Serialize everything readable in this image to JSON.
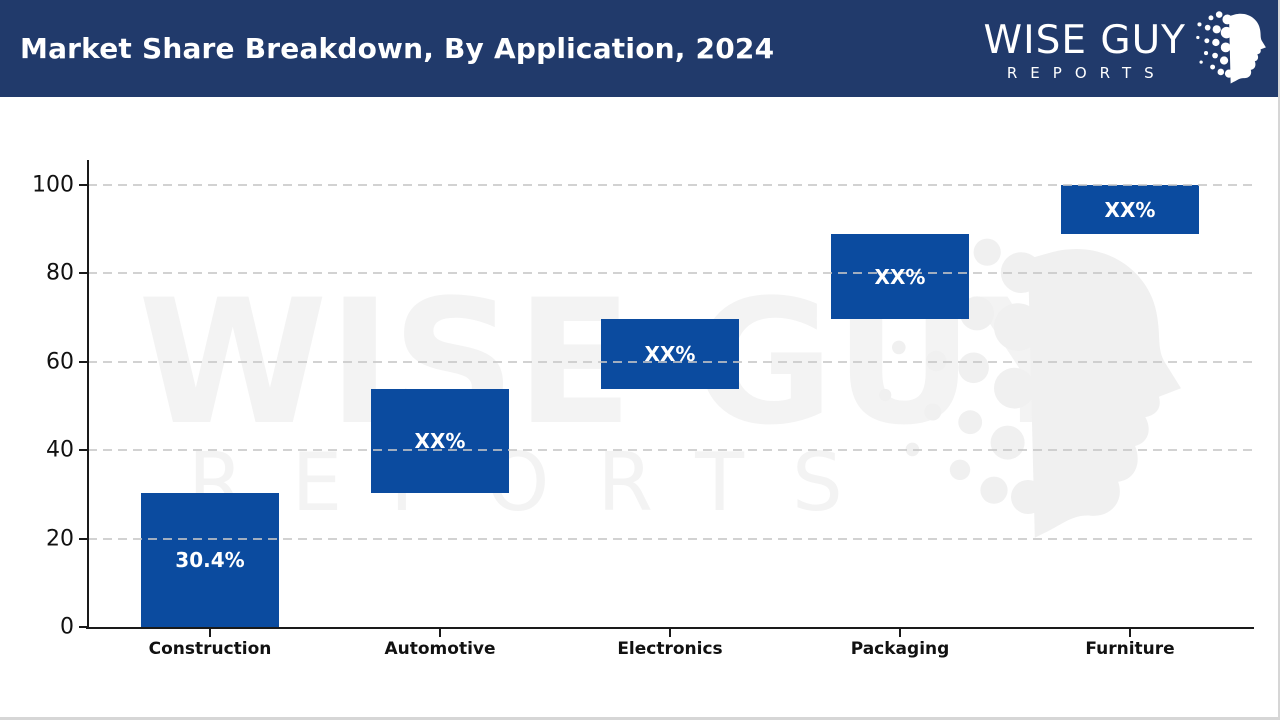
{
  "header": {
    "title": "Market Share Breakdown, By Application, 2024",
    "bg_color": "#213a6b",
    "logo": {
      "word": "WISE GUY",
      "sub": "REPORTS"
    }
  },
  "watermark": {
    "line1": "WISE GUY",
    "line2": "REPORTS"
  },
  "chart_data": {
    "type": "bar",
    "subtype": "waterfall-floating-bars",
    "title": "Market Share Breakdown, By Application, 2024",
    "categories": [
      "Construction",
      "Automotive",
      "Electronics",
      "Packaging",
      "Furniture"
    ],
    "bars": [
      {
        "category": "Construction",
        "start": 0,
        "end": 30.4,
        "label": "30.4%"
      },
      {
        "category": "Automotive",
        "start": 30.4,
        "end": 53.8,
        "label": "XX%"
      },
      {
        "category": "Electronics",
        "start": 53.8,
        "end": 69.6,
        "label": "XX%"
      },
      {
        "category": "Packaging",
        "start": 69.6,
        "end": 88.9,
        "label": "XX%"
      },
      {
        "category": "Furniture",
        "start": 88.9,
        "end": 100,
        "label": "XX%"
      }
    ],
    "ylim": [
      0,
      100
    ],
    "yticks": [
      0,
      20,
      40,
      60,
      80,
      100
    ],
    "xlabel": "",
    "ylabel": "",
    "grid": "horizontal-dashed-over-bars",
    "legend": "none",
    "bar_color": "#0b4b9f",
    "bar_label_color": "#ffffff",
    "axis_color": "#1a1a1a"
  }
}
